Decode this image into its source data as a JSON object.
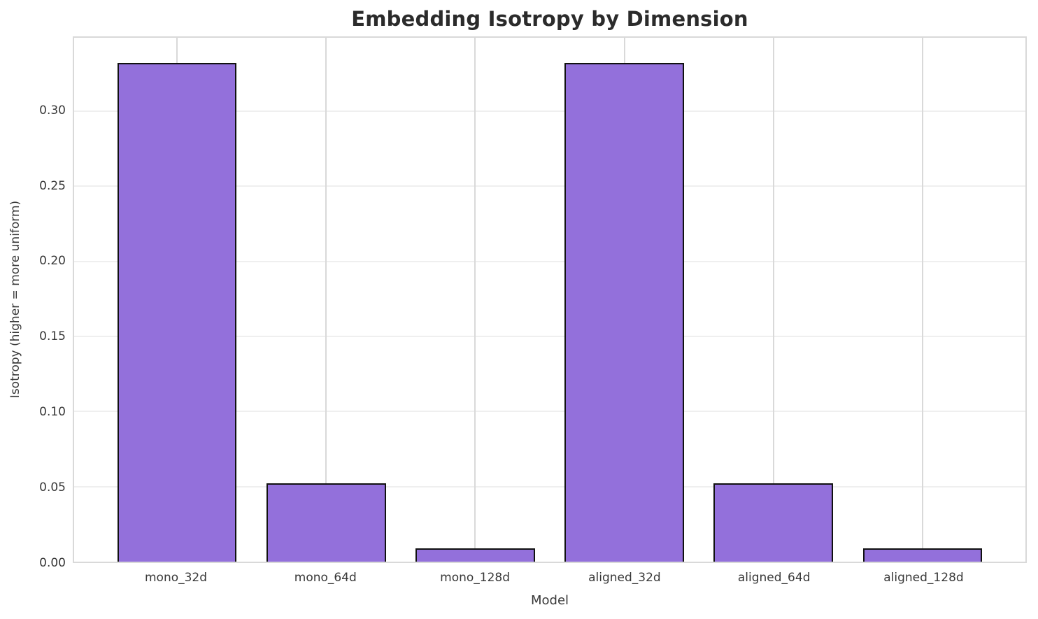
{
  "chart_data": {
    "type": "bar",
    "title": "Embedding Isotropy by Dimension",
    "xlabel": "Model",
    "ylabel": "Isotropy (higher = more uniform)",
    "categories": [
      "mono_32d",
      "mono_64d",
      "mono_128d",
      "aligned_32d",
      "aligned_64d",
      "aligned_128d"
    ],
    "values": [
      0.332,
      0.052,
      0.009,
      0.332,
      0.052,
      0.009
    ],
    "ylim": [
      0,
      0.349
    ],
    "xlim": [
      -0.69,
      5.69
    ],
    "bar_width": 0.8,
    "yticks": [
      0.0,
      0.05,
      0.1,
      0.15,
      0.2,
      0.25,
      0.3
    ],
    "ytick_labels": [
      "0.00",
      "0.05",
      "0.10",
      "0.15",
      "0.20",
      "0.25",
      "0.30"
    ],
    "grid": true,
    "legend": "none",
    "bar_color": "#9370DB",
    "bar_edge_color": "#111111",
    "grid_color_h": "#efefef",
    "grid_color_v": "#d9d9d9",
    "spine_color": "#d9d9d9",
    "title_color": "#2b2b2b",
    "tick_color": "#383838"
  }
}
